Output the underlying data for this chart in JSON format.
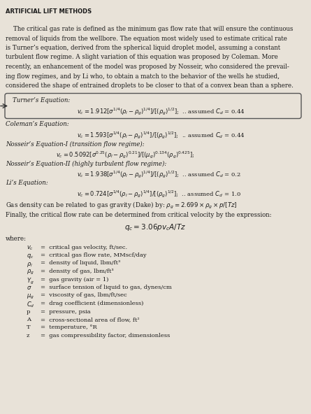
{
  "title": "ARTIFICIAL LIFT METHODS",
  "bg_color": "#e8e2d8",
  "title_color": "#2a2a2a",
  "text_color": "#1a1a1a",
  "intro_lines": [
    "    The critical gas rate is defined as the minimum gas flow rate that will ensure the continuous",
    "removal of liquids from the wellbore. The equation most widely used to estimate critical rate",
    "is Turner’s equation, derived from the spherical liquid droplet model, assuming a constant",
    "turbulent flow regime. A slight variation of this equation was proposed by Coleman. More",
    "recently, an enhancement of the model was proposed by Nosseir, who considered the prevail-",
    "ing flow regimes, and by Li who, to obtain a match to the behavior of the wells he studied,",
    "considered the shape of entrained droplets to be closer to that of a convex bean than a sphere."
  ],
  "turner_label": "Turner’s Equation:",
  "turner_eq": "$v_c = 1.912[\\sigma^{1/4}(\\rho_l - \\rho_g)^{1/4}]/[(\\rho_g)^{1/2}]$;  .. assumed $C_d$ = 0.44",
  "coleman_label": "Coleman’s Equation:",
  "coleman_eq": "$v_c = 1.593[\\sigma^{1/4}(\\rho_l - \\rho_g)^{1/4}]/[(\\rho_g)^{1/2}]$;  .. assumed $C_d$ = 0.44",
  "nosseir1_label": "Nosseir’s Equation-I (transition flow regime):",
  "nosseir1_eq": "$v_c = 0.5092[\\sigma^{0.25}(\\rho_l - \\rho_g)^{0.21}]/[(\\mu_g)^{0.134}(\\rho_g)^{0.425}]$;",
  "nosseir2_label": "Nosseir’s Equation-II (highly turbulent flow regime):",
  "nosseir2_eq": "$v_c = 1.938[\\sigma^{1/4}(\\rho_l - \\rho_g)^{1/4}]/[(\\rho_g)^{1/2}]$;  .. assumed $C_d$ = 0.2",
  "li_label": "Li’s Equation:",
  "li_eq": "$v_c = 0.724[\\sigma^{1/4}(\\rho_l - \\rho_g)^{1/4}]/[(\\rho_g)^{1/2}]$;  .. assumed $C_d$ = 1.0",
  "density_line": "Gas density can be related to gas gravity (Dake) by: $\\rho_g = 2.699 \\times \\rho_g \\times p/[Tz]$",
  "flowrate_line": "Finally, the critical flow rate can be determined from critical velocity by the expression:",
  "flowrate_eq": "$q_c = 3.06pv_c A/Tz$",
  "where_label": "where:",
  "where_items": [
    [
      "$v_c$",
      "=  critical gas velocity, ft/sec."
    ],
    [
      "$q_c$",
      "=  critical gas flow rate, MMscf/day"
    ],
    [
      "$\\rho_l$",
      "=  density of liquid, lbm/ft³"
    ],
    [
      "$\\rho_g$",
      "=  density of gas, lbm/ft³"
    ],
    [
      "$Y_g$",
      "=  gas gravity (air = 1)"
    ],
    [
      "$\\sigma$",
      "=  surface tension of liquid to gas, dynes/cm"
    ],
    [
      "$\\mu_g$",
      "=  viscosity of gas, lbm/ft/sec"
    ],
    [
      "$C_d$",
      "=  drag coefficient (dimensionless)"
    ],
    [
      "p",
      "=  pressure, psia"
    ],
    [
      "A",
      "=  cross-sectional area of flow, ft²"
    ],
    [
      "T",
      "=  temperature, °R"
    ],
    [
      "z",
      "=  gas compressibility factor, dimensionless"
    ]
  ]
}
